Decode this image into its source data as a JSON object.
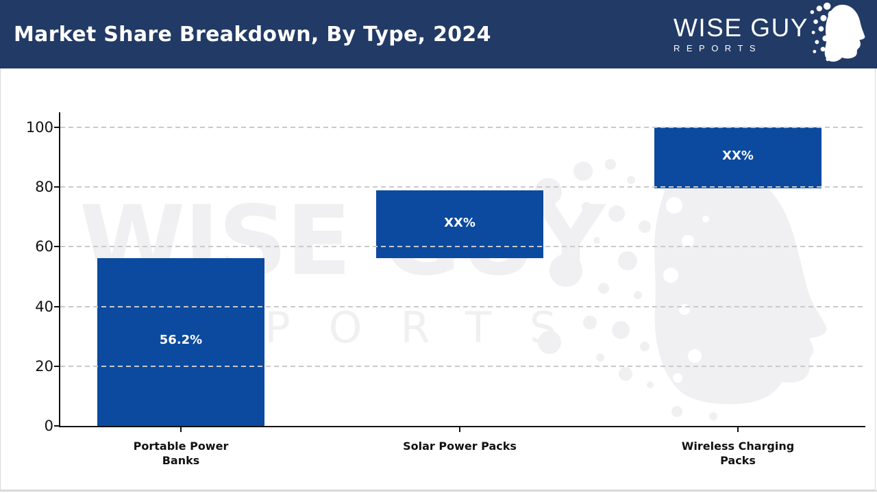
{
  "header": {
    "title": "Market Share Breakdown, By Type, 2024",
    "logo": {
      "line1": "WISE GUY",
      "line2": "REPORTS"
    }
  },
  "watermark": {
    "line1": "WISE GUY",
    "line2": "REPORTS"
  },
  "colors": {
    "header_bg": "#213a66",
    "header_text": "#ffffff",
    "bar_fill": "#0b4a9e",
    "bar_label": "#ffffff",
    "grid": "#c9c9c9",
    "axis": "#111111",
    "watermark": "#f0f0f2",
    "background": "#ffffff",
    "frame_border": "#d9d9d9"
  },
  "chart_data": {
    "type": "bar",
    "variant": "waterfall",
    "title": "Market Share Breakdown, By Type, 2024",
    "xlabel": "",
    "ylabel": "",
    "legend": "none",
    "grid": "horizontal-dashed",
    "ylim": [
      0,
      105
    ],
    "yticks": [
      0,
      20,
      40,
      60,
      80,
      100
    ],
    "categories": [
      "Portable Power Banks",
      "Solar Power Packs",
      "Wireless Charging Packs"
    ],
    "category_label_lines": [
      [
        "Portable Power",
        "Banks"
      ],
      [
        "Solar Power Packs"
      ],
      [
        "Wireless Charging",
        "Packs"
      ]
    ],
    "bars": [
      {
        "category": "Portable Power Banks",
        "start": 0,
        "end": 56.2,
        "label": "56.2%"
      },
      {
        "category": "Solar Power Packs",
        "start": 56.2,
        "end": 78.8,
        "label": "XX%"
      },
      {
        "category": "Wireless Charging Packs",
        "start": 79.6,
        "end": 100,
        "label": "XX%"
      }
    ]
  }
}
